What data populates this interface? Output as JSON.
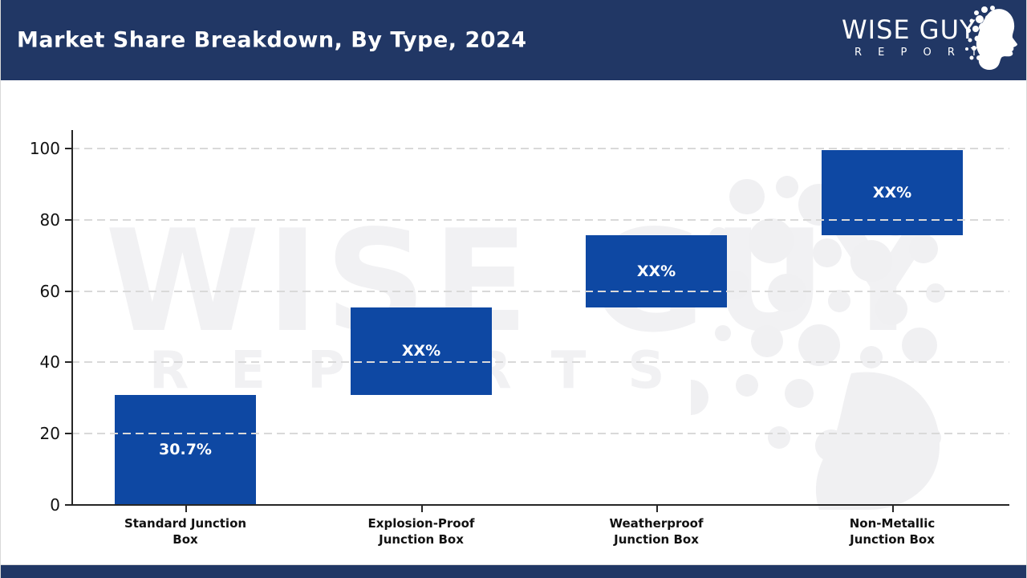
{
  "header": {
    "title": "Market Share Breakdown, By Type, 2024",
    "bg_color": "#213765",
    "logo": {
      "name": "WISE GUY",
      "sub": "R E P O R T S"
    }
  },
  "watermark": {
    "name": "WISE GUY",
    "sub": "REPORTS"
  },
  "chart_data": {
    "type": "bar",
    "variant": "floating-waterfall",
    "title": "Market Share Breakdown, By Type, 2024",
    "categories": [
      "Standard Junction Box",
      "Explosion-Proof Junction Box",
      "Weatherproof Junction Box",
      "Non-Metallic Junction Box"
    ],
    "categories_lines": [
      [
        "Standard Junction",
        "Box"
      ],
      [
        "Explosion-Proof",
        "Junction Box"
      ],
      [
        "Weatherproof",
        "Junction Box"
      ],
      [
        "Non-Metallic",
        "Junction Box"
      ]
    ],
    "segments": [
      {
        "category": "Standard Junction Box",
        "start": 0,
        "end": 30.7,
        "label": "30.7%"
      },
      {
        "category": "Explosion-Proof Junction Box",
        "start": 30.7,
        "end": 55.2,
        "label": "XX%"
      },
      {
        "category": "Weatherproof Junction Box",
        "start": 55.2,
        "end": 75.4,
        "label": "XX%"
      },
      {
        "category": "Non-Metallic Junction Box",
        "start": 75.4,
        "end": 99.3,
        "label": "XX%"
      }
    ],
    "xlabel": "",
    "ylabel": "",
    "ylim": [
      0,
      105
    ],
    "yticks": [
      0,
      20,
      40,
      60,
      80,
      100
    ],
    "grid": "horizontal-dashed",
    "legend": "none",
    "bar_color": "#0E48A3",
    "bar_label_color": "#FFFFFF",
    "gridline_color": "#D9D9D9",
    "axis_color": "#262626"
  },
  "footer": {
    "bg_color": "#213765"
  }
}
